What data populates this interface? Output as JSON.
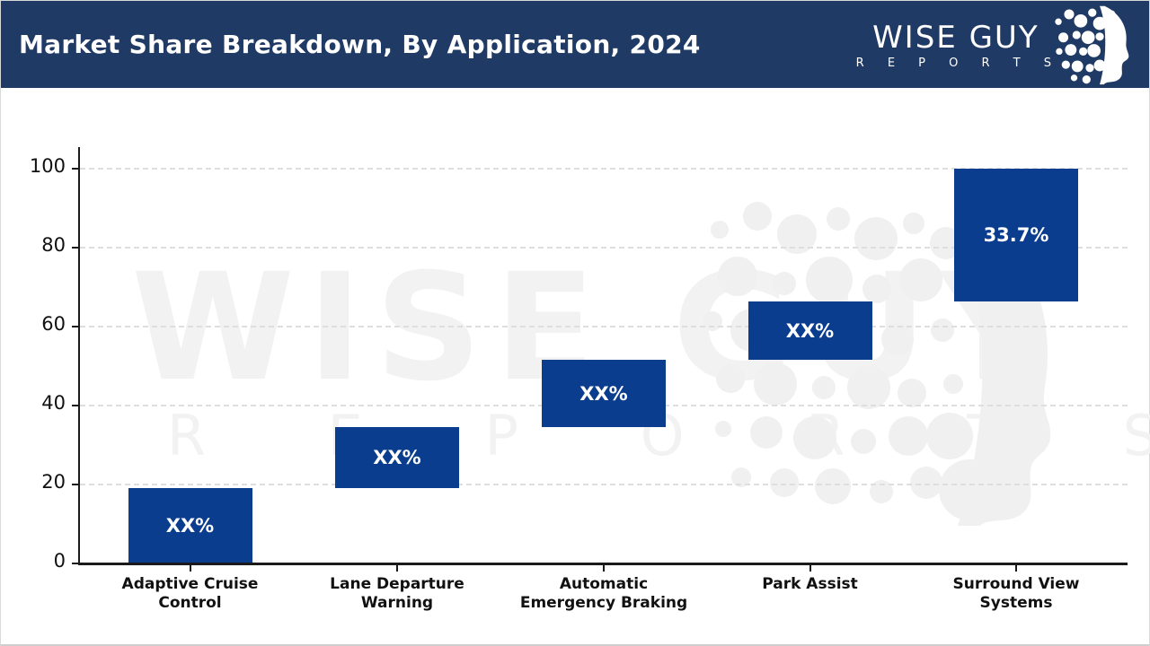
{
  "header": {
    "title": "Market Share Breakdown, By Application, 2024",
    "bg_color": "#203A66",
    "logo": {
      "line1": "WISE GUY",
      "line2": "R E P O R T S"
    }
  },
  "watermark": {
    "line1": "WISE GUY",
    "line2": "R E P O R T S"
  },
  "chart_data": {
    "type": "bar",
    "subtype": "waterfall",
    "title": "Market Share Breakdown, By Application, 2024",
    "categories": [
      "Adaptive Cruise\nControl",
      "Lane Departure\nWarning",
      "Automatic\nEmergency Braking",
      "Park Assist",
      "Surround View\nSystems"
    ],
    "segments": [
      {
        "category": "Adaptive Cruise Control",
        "start": 0,
        "end": 19.2,
        "value_label": "XX%"
      },
      {
        "category": "Lane Departure Warning",
        "start": 19.2,
        "end": 34.6,
        "value_label": "XX%"
      },
      {
        "category": "Automatic Emergency Braking",
        "start": 34.6,
        "end": 51.5,
        "value_label": "XX%"
      },
      {
        "category": "Park Assist",
        "start": 51.5,
        "end": 66.3,
        "value_label": "XX%"
      },
      {
        "category": "Surround View Systems",
        "start": 66.3,
        "end": 100,
        "value_label": "33.7%"
      }
    ],
    "y_ticks": [
      0,
      20,
      40,
      60,
      80,
      100
    ],
    "ylim": [
      0,
      105
    ],
    "xlabel": "",
    "ylabel": "",
    "bar_color": "#0B3D8F",
    "grid": "dashed-horizontal",
    "legend": "none"
  }
}
